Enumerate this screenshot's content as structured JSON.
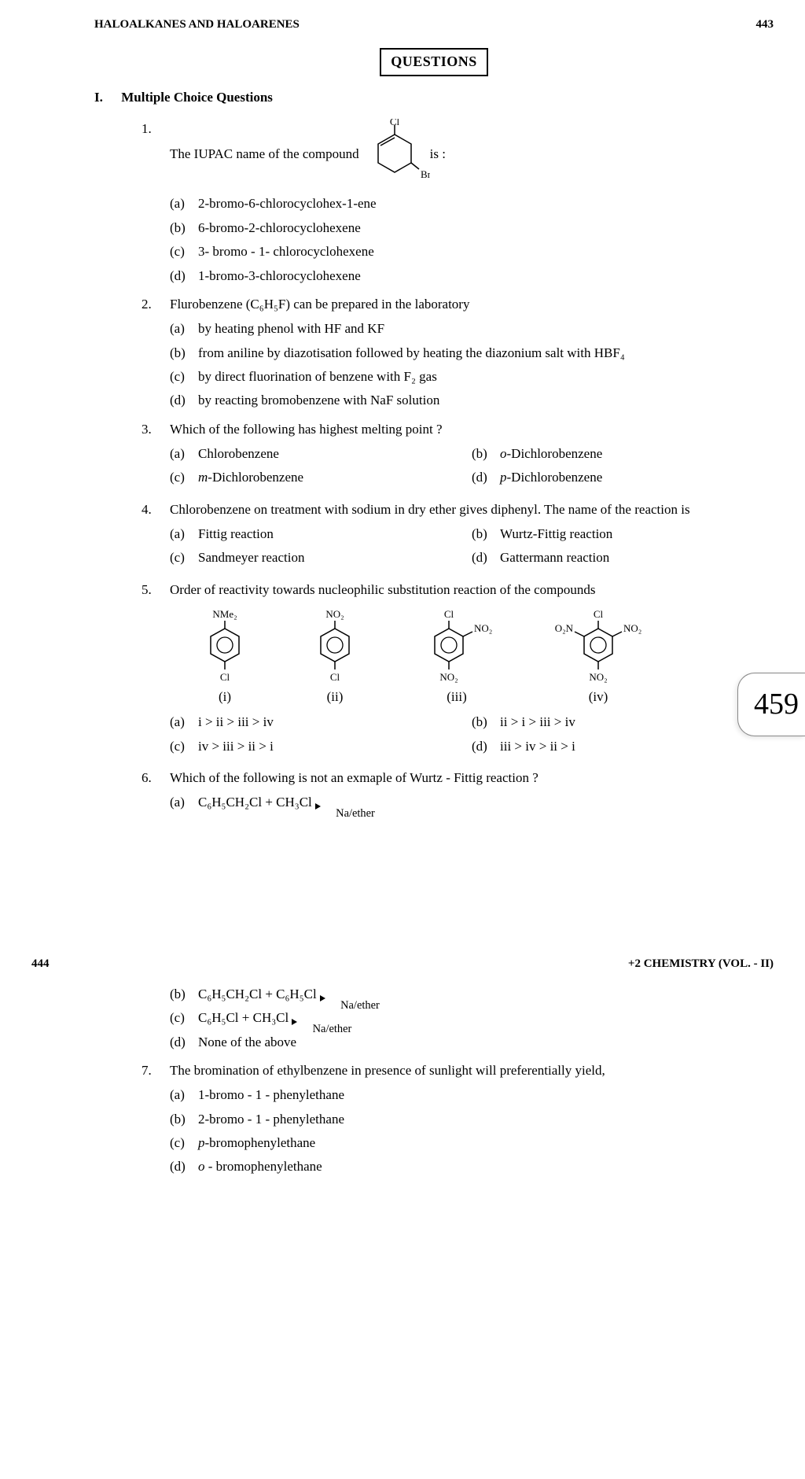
{
  "header": {
    "chapter": "HALOALKANES AND HALOARENES",
    "page_no_top": "443"
  },
  "box_title": "QUESTIONS",
  "section": {
    "roman": "I.",
    "title": "Multiple Choice Questions"
  },
  "q1": {
    "num": "1.",
    "text_before": "The IUPAC name of the compound",
    "text_after": "is :",
    "diagram": {
      "top_label": "Cl",
      "bottom_label": "Br"
    },
    "opts": {
      "a": {
        "label": "(a)",
        "text": "2-bromo-6-chlorocyclohex-1-ene"
      },
      "b": {
        "label": "(b)",
        "text": "6-bromo-2-chlorocyclohexene"
      },
      "c": {
        "label": "(c)",
        "text": "3- bromo - 1- chlorocyclohexene"
      },
      "d": {
        "label": "(d)",
        "text": "1-bromo-3-chlorocyclohexene"
      }
    }
  },
  "q2": {
    "num": "2.",
    "text": "Flurobenzene (C₆H₅F) can be prepared in the laboratory",
    "opts": {
      "a": {
        "label": "(a)",
        "text": "by heating phenol with HF and KF"
      },
      "b": {
        "label": "(b)",
        "text": "from aniline by diazotisation followed by heating the diazonium salt with HBF₄"
      },
      "c": {
        "label": "(c)",
        "text": "by direct fluorination of benzene with F₂ gas"
      },
      "d": {
        "label": "(d)",
        "text": "by reacting bromobenzene with NaF solution"
      }
    }
  },
  "q3": {
    "num": "3.",
    "text": "Which of the following has highest melting point ?",
    "opts": {
      "a": {
        "label": "(a)",
        "text": "Chlorobenzene"
      },
      "b": {
        "label": "(b)",
        "text_html": "<i>o</i>-Dichlorobenzene"
      },
      "c": {
        "label": "(c)",
        "text_html": "<i>m</i>-Dichlorobenzene"
      },
      "d": {
        "label": "(d)",
        "text_html": "<i>p</i>-Dichlorobenzene"
      }
    }
  },
  "q4": {
    "num": "4.",
    "text": "Chlorobenzene on treatment with sodium in dry ether gives diphenyl. The name of the reaction is",
    "opts": {
      "a": {
        "label": "(a)",
        "text": "Fittig reaction"
      },
      "b": {
        "label": "(b)",
        "text": "Wurtz-Fittig reaction"
      },
      "c": {
        "label": "(c)",
        "text": "Sandmeyer reaction"
      },
      "d": {
        "label": "(d)",
        "text": "Gattermann reaction"
      }
    }
  },
  "q5": {
    "num": "5.",
    "text": "Order of reactivity towards nucleophilic substitution reaction of the compounds",
    "compounds": {
      "i": {
        "top": "NMe₂",
        "bottom": "Cl",
        "roman": "(i)"
      },
      "ii": {
        "top": "NO₂",
        "bottom": "Cl",
        "roman": "(ii)"
      },
      "iii": {
        "top": "Cl",
        "right": "NO₂",
        "bottom": "NO₂",
        "roman": "(iii)"
      },
      "iv": {
        "top": "Cl",
        "left": "O₂N",
        "right": "NO₂",
        "bottom": "NO₂",
        "roman": "(iv)"
      }
    },
    "opts": {
      "a": {
        "label": "(a)",
        "text": "i > ii > iii > iv"
      },
      "b": {
        "label": "(b)",
        "text": "ii  > i > iii > iv"
      },
      "c": {
        "label": "(c)",
        "text": "iv > iii > ii > i"
      },
      "d": {
        "label": "(d)",
        "text": "iii  > iv > ii > i"
      }
    }
  },
  "q6": {
    "num": "6.",
    "text": "Which of the following is not an exmaple of Wurtz - Fittig reaction ?",
    "arrow_label": "Na/ether",
    "opts": {
      "a": {
        "label": "(a)",
        "lhs": "C₆H₅CH₂Cl + CH₃Cl"
      },
      "b": {
        "label": "(b)",
        "lhs": "C₆H₅CH₂Cl + C₆H₅Cl"
      },
      "c": {
        "label": "(c)",
        "lhs": "C₆H₅Cl + CH₃Cl"
      },
      "d": {
        "label": "(d)",
        "text": "None of the above"
      }
    }
  },
  "q7": {
    "num": "7.",
    "text": "The bromination of ethylbenzene in presence of sunlight will preferentially yield,",
    "opts": {
      "a": {
        "label": "(a)",
        "text": "1-bromo - 1 - phenylethane"
      },
      "b": {
        "label": "(b)",
        "text": "2-bromo - 1 - phenylethane"
      },
      "c": {
        "label": "(c)",
        "text_html": "<i>p</i>-bromophenylethane"
      },
      "d": {
        "label": "(d)",
        "text_html": "<i>o</i> - bromophenylethane"
      }
    }
  },
  "footer": {
    "page_no": "444",
    "book": "+2 CHEMISTRY (VOL. - II)"
  },
  "side_tab": "459"
}
